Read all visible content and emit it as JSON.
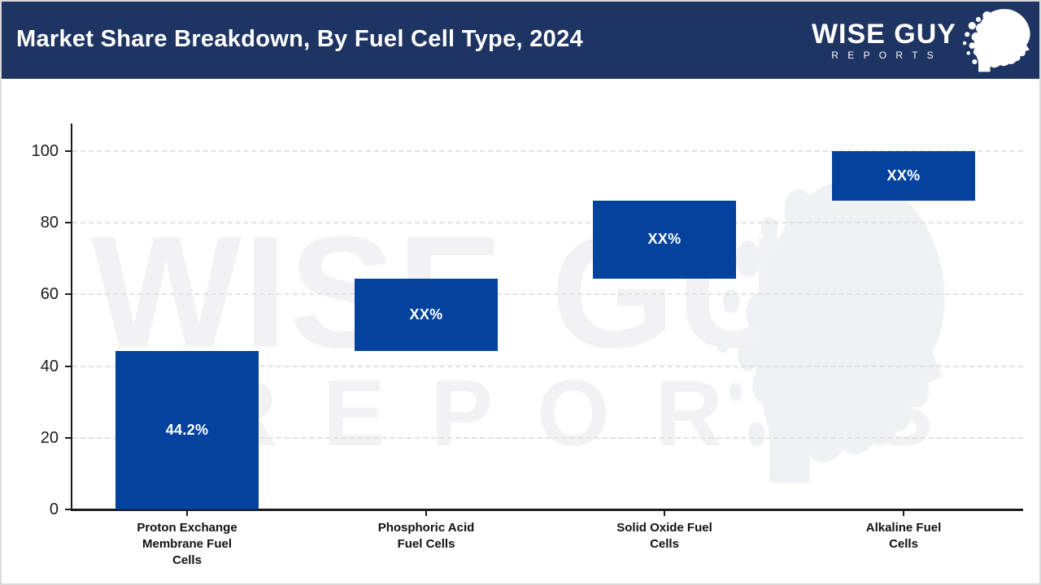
{
  "header": {
    "title": "Market Share Breakdown, By Fuel Cell Type, 2024",
    "logo": {
      "brand_line1": "WISE GUY",
      "brand_line2": "R E P O R T S"
    }
  },
  "watermark": {
    "line1": "WISE GUY",
    "line2": "R E P O R T S"
  },
  "colors": {
    "header_bg": "#1e3462",
    "bar_blue": "#04439d",
    "gridline": "#e0e0e0",
    "axis": "#1a1a1a",
    "watermark": "#f2f2f4"
  },
  "chart_data": {
    "type": "bar",
    "subtype": "waterfall",
    "title": "Market Share Breakdown, By Fuel Cell Type, 2024",
    "categories": [
      "Proton Exchange Membrane Fuel Cells",
      "Phosphoric Acid Fuel Cells",
      "Solid Oxide Fuel Cells",
      "Alkaline Fuel Cells"
    ],
    "category_lines": [
      [
        "Proton Exchange",
        "Membrane Fuel",
        "Cells"
      ],
      [
        "Phosphoric Acid",
        "Fuel Cells"
      ],
      [
        "Solid Oxide Fuel",
        "Cells"
      ],
      [
        "Alkaline Fuel",
        "Cells"
      ]
    ],
    "bars": [
      {
        "label": "44.2%",
        "start": 0,
        "end": 44.2,
        "value": 44.2
      },
      {
        "label": "XX%",
        "start": 44.2,
        "end": 64.5,
        "value": 20.3
      },
      {
        "label": "XX%",
        "start": 64.5,
        "end": 86.2,
        "value": 21.7
      },
      {
        "label": "XX%",
        "start": 86.2,
        "end": 100,
        "value": 13.8
      }
    ],
    "y_ticks": [
      0,
      20,
      40,
      60,
      80,
      100
    ],
    "ylim": [
      0,
      105
    ],
    "xlabel": "",
    "ylabel": "",
    "legend": "none",
    "grid": "horizontal-dashed",
    "bar_color": "#04439d",
    "note": "Last three bar labels are masked as XX% in the source image"
  }
}
